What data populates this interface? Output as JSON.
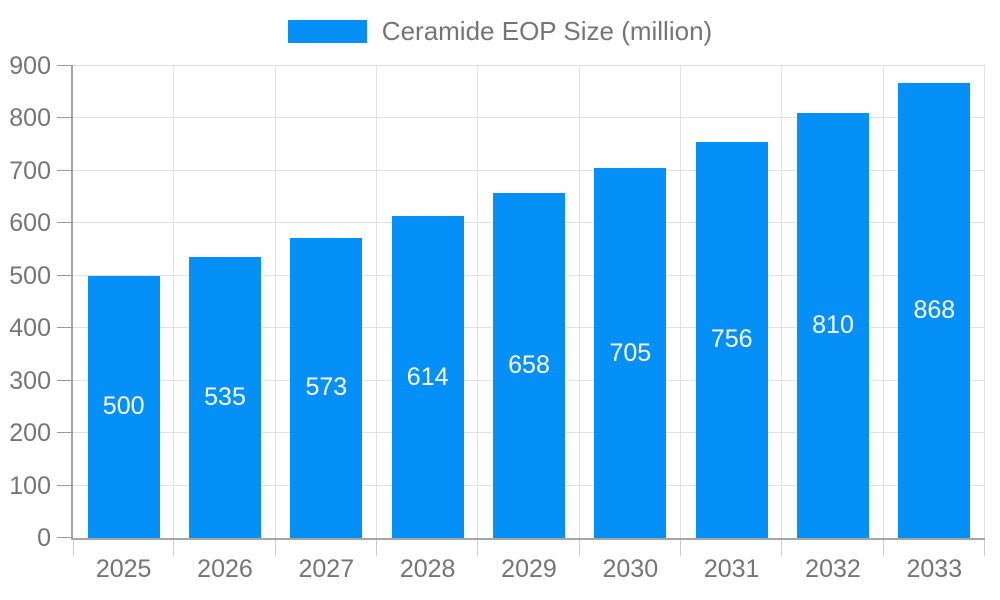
{
  "legend": {
    "label": "Ceramide EOP Size (million)",
    "swatch_color": "#0590f8"
  },
  "chart_data": {
    "type": "bar",
    "title": "Ceramide EOP Size (million)",
    "series_name": "Ceramide EOP Size (million)",
    "categories": [
      "2025",
      "2026",
      "2027",
      "2028",
      "2029",
      "2030",
      "2031",
      "2032",
      "2033"
    ],
    "values": [
      500,
      535,
      573,
      614,
      658,
      705,
      756,
      810,
      868
    ],
    "xlabel": "",
    "ylabel": "",
    "ylim": [
      0,
      900
    ],
    "ytick_step": 100,
    "y_ticks": [
      "0",
      "100",
      "200",
      "300",
      "400",
      "500",
      "600",
      "700",
      "800",
      "900"
    ],
    "grid": true,
    "legend_position": "top",
    "value_labels_inside_bars": true
  },
  "colors": {
    "bar": "#0590f8",
    "axis_line": "#a6a6a6",
    "gridline": "#e2e2e2",
    "tick": "#999999",
    "text": "#757575",
    "value_label": "#ffffff",
    "background": "#ffffff"
  }
}
